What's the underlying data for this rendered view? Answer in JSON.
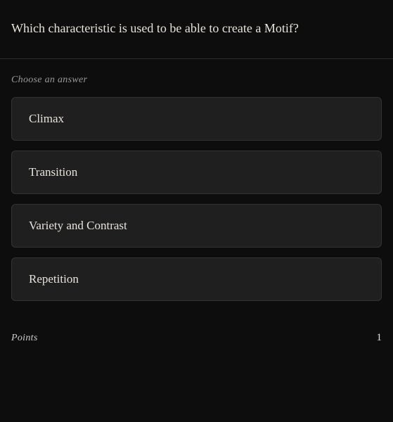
{
  "question": {
    "text": "Which characteristic is used to be able to create a Motif?",
    "choose_label": "Choose an answer",
    "answers": [
      {
        "label": "Climax"
      },
      {
        "label": "Transition"
      },
      {
        "label": "Variety and Contrast"
      },
      {
        "label": "Repetition"
      }
    ]
  },
  "points": {
    "label": "Points",
    "value": "1"
  },
  "colors": {
    "background": "#0d0d0d",
    "text_primary": "#e8e3da",
    "text_secondary": "#999999",
    "option_bg": "#1f1f1f",
    "option_border": "#333333",
    "divider": "#2a2a2a"
  },
  "typography": {
    "question_fontsize": 18,
    "option_fontsize": 17,
    "label_fontsize": 14
  }
}
